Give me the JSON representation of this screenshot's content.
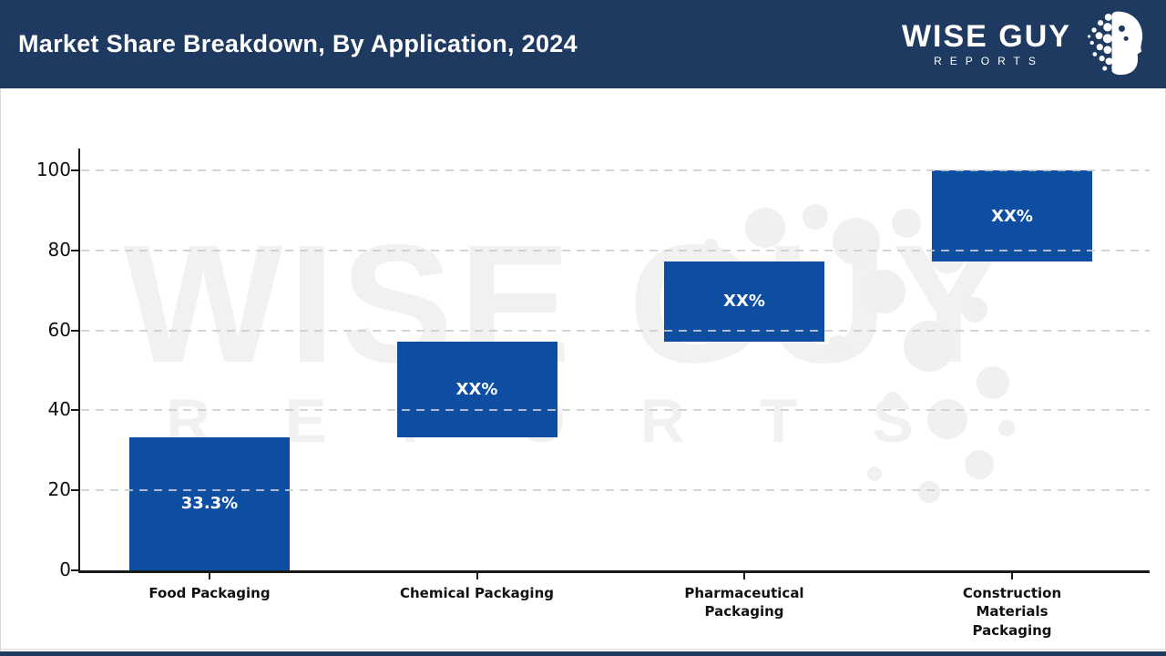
{
  "header": {
    "title": "Market Share Breakdown, By Application, 2024",
    "logo": {
      "wordmark": "WISE GUY",
      "subtext": "REPORTS"
    }
  },
  "watermark": {
    "wordmark": "WISE GUY",
    "subtext": "REPORTS"
  },
  "chart_data": {
    "type": "bar",
    "variant": "waterfall",
    "title": "Market Share Breakdown, By Application, 2024",
    "categories": [
      "Food Packaging",
      "Chemical Packaging",
      "Pharmaceutical Packaging",
      "Construction Materials Packaging"
    ],
    "category_display": [
      "Food Packaging",
      "Chemical Packaging",
      "Pharmaceutical\nPackaging",
      "Construction\nMaterials\nPackaging"
    ],
    "segments": [
      {
        "category": "Food Packaging",
        "start": 0,
        "end": 33.3,
        "label": "33.3%"
      },
      {
        "category": "Chemical Packaging",
        "start": 33.3,
        "end": 57.2,
        "label": "XX%"
      },
      {
        "category": "Pharmaceutical Packaging",
        "start": 57.2,
        "end": 77.2,
        "label": "XX%"
      },
      {
        "category": "Construction Materials Packaging",
        "start": 77.2,
        "end": 100,
        "label": "XX%"
      }
    ],
    "y_ticks": [
      0,
      20,
      40,
      60,
      80,
      100
    ],
    "ylim": [
      0,
      100
    ],
    "xlabel": "",
    "ylabel": "",
    "grid": "horizontal-dashed",
    "legend": "none",
    "colors": {
      "bar": "#0d4da2",
      "bar_label": "#ffffff",
      "axis": "#1a1a1a",
      "grid": "#d6d6d6",
      "tick_label": "#111111",
      "category_label": "#111111"
    }
  },
  "colors": {
    "header_bg": "#1f3a60",
    "page_bg": "#ffffff",
    "watermark": "#f1f1f1",
    "footer_bar": "#1f3a60",
    "edge_line": "#d9d9d9"
  }
}
